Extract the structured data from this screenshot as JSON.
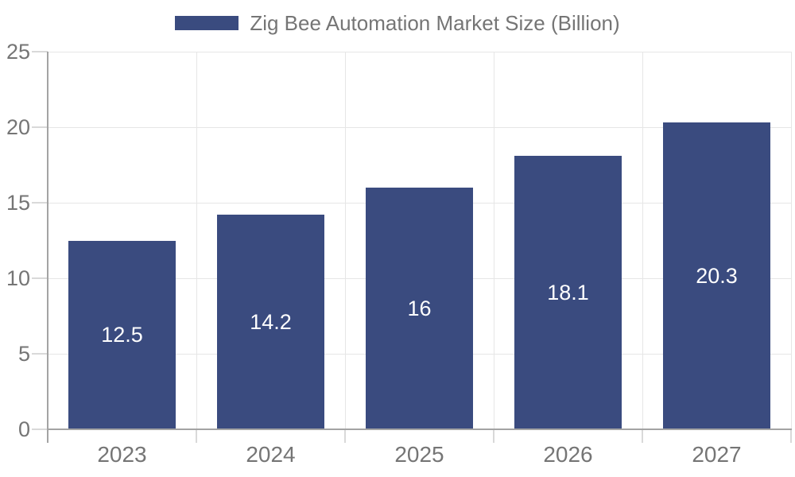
{
  "chart_data": {
    "type": "bar",
    "title": "Zig Bee Automation Market Size (Billion)",
    "legend": {
      "position": "top",
      "entries": [
        "Zig Bee Automation Market Size (Billion)"
      ]
    },
    "categories": [
      "2023",
      "2024",
      "2025",
      "2026",
      "2027"
    ],
    "series": [
      {
        "name": "Zig Bee Automation Market Size (Billion)",
        "values": [
          12.5,
          14.2,
          16,
          18.1,
          20.3
        ]
      }
    ],
    "value_labels": [
      "12.5",
      "14.2",
      "16",
      "18.1",
      "20.3"
    ],
    "xlabel": "",
    "ylabel": "",
    "ylim": [
      0,
      25
    ],
    "yticks": [
      0,
      5,
      10,
      15,
      20,
      25
    ],
    "grid": true,
    "colors": {
      "bar": "#3A4B7F",
      "value_label": "#FFFFFF",
      "axis_label": "#757575",
      "legend_text": "#757575",
      "grid_line": "#E6E6E6",
      "tick": "#D9D9D9",
      "axis_line": "#A3A3A3",
      "background": "#FFFFFF"
    }
  }
}
